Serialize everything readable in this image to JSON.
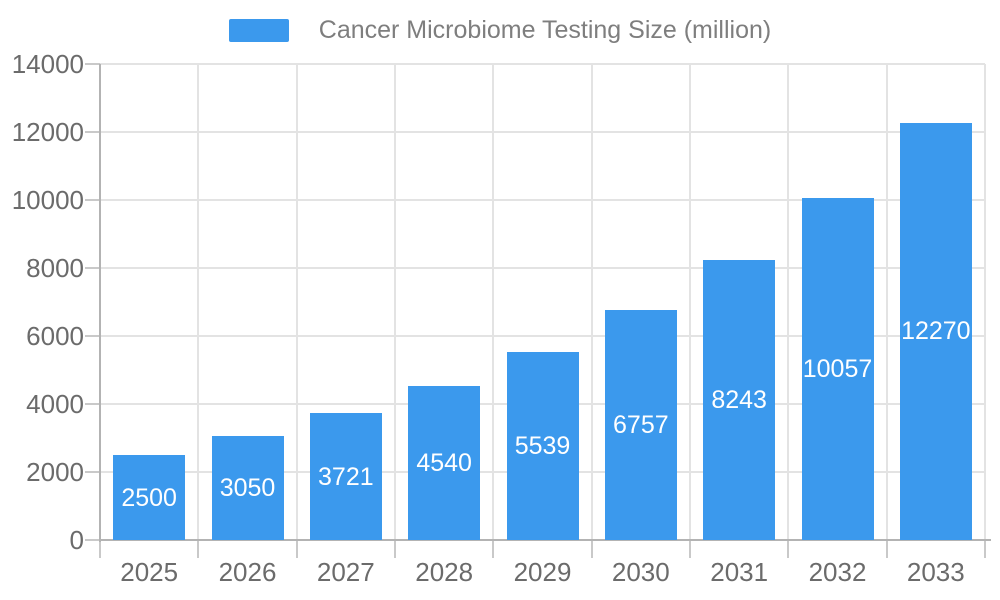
{
  "legend": {
    "label": "Cancer Microbiome Testing Size (million)"
  },
  "chart_data": {
    "type": "bar",
    "title": "Cancer Microbiome Testing Size (million)",
    "categories": [
      "2025",
      "2026",
      "2027",
      "2028",
      "2029",
      "2030",
      "2031",
      "2032",
      "2033"
    ],
    "series": [
      {
        "name": "Cancer Microbiome Testing Size (million)",
        "values": [
          2500,
          3050,
          3721,
          4540,
          5539,
          6757,
          8243,
          10057,
          12270
        ]
      }
    ],
    "xlabel": "",
    "ylabel": "",
    "ylim": [
      0,
      14000
    ],
    "yticks": [
      0,
      2000,
      4000,
      6000,
      8000,
      10000,
      12000,
      14000
    ],
    "grid": true,
    "legend_position": "top-center",
    "value_labels": "inside-center-white"
  },
  "colors": {
    "bar": "#3B99ED",
    "grid": "#E3E3E3",
    "axis_line": "#B3B3B3",
    "tick": "#C9C9C9",
    "axis_text": "#6B6B6B",
    "legend_text": "#7E7E7E",
    "bar_label_text": "#FFFFFF",
    "background": "#FFFFFF"
  }
}
